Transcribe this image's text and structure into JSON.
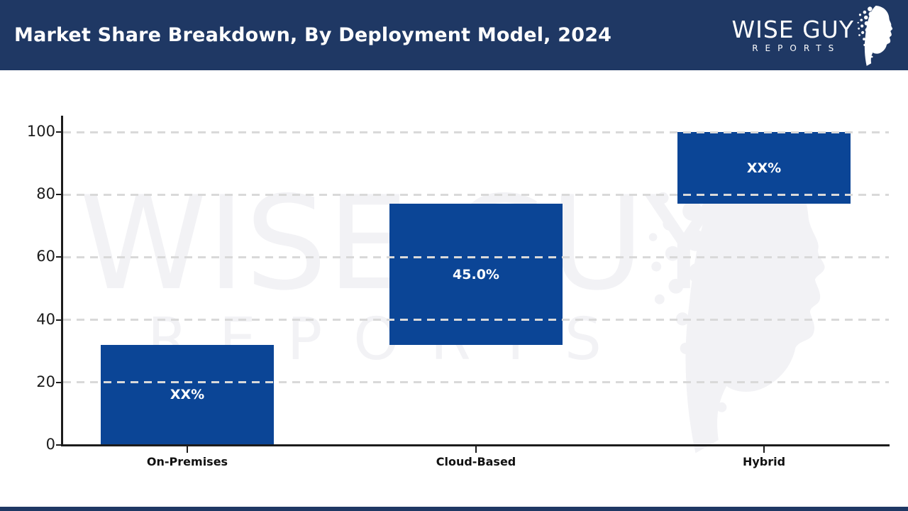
{
  "header": {
    "title": "Market Share Breakdown, By Deployment Model, 2024",
    "logo": {
      "brand": "WISE GUY",
      "sub": "REPORTS"
    }
  },
  "watermark": {
    "brand": "WISE GUY",
    "sub": "REPORTS"
  },
  "chart_data": {
    "type": "bar",
    "subtype": "waterfall-floating-bars",
    "title": "Market Share Breakdown, By Deployment Model, 2024",
    "categories": [
      "On-Premises",
      "Cloud-Based",
      "Hybrid"
    ],
    "segments": [
      {
        "category": "On-Premises",
        "start": 0,
        "end": 32,
        "value": 32,
        "label": "XX%"
      },
      {
        "category": "Cloud-Based",
        "start": 32,
        "end": 77,
        "value": 45,
        "label": "45.0%"
      },
      {
        "category": "Hybrid",
        "start": 77,
        "end": 100,
        "value": 23,
        "label": "XX%"
      }
    ],
    "values": [
      32,
      45,
      23
    ],
    "xlabel": "",
    "ylabel": "",
    "ylim": [
      0,
      100
    ],
    "yticks": [
      0,
      20,
      40,
      60,
      80,
      100
    ],
    "grid": "horizontal-dashed",
    "legend": false,
    "bar_color": "#0b4596",
    "label_color": "#ffffff"
  },
  "colors": {
    "header_bg": "#1f3864",
    "footer_bg": "#1f3864",
    "bar": "#0b4596",
    "grid": "#d9d9d9",
    "axis": "#1c1c1c",
    "watermark": "#f2f2f5",
    "title_text": "#ffffff"
  }
}
